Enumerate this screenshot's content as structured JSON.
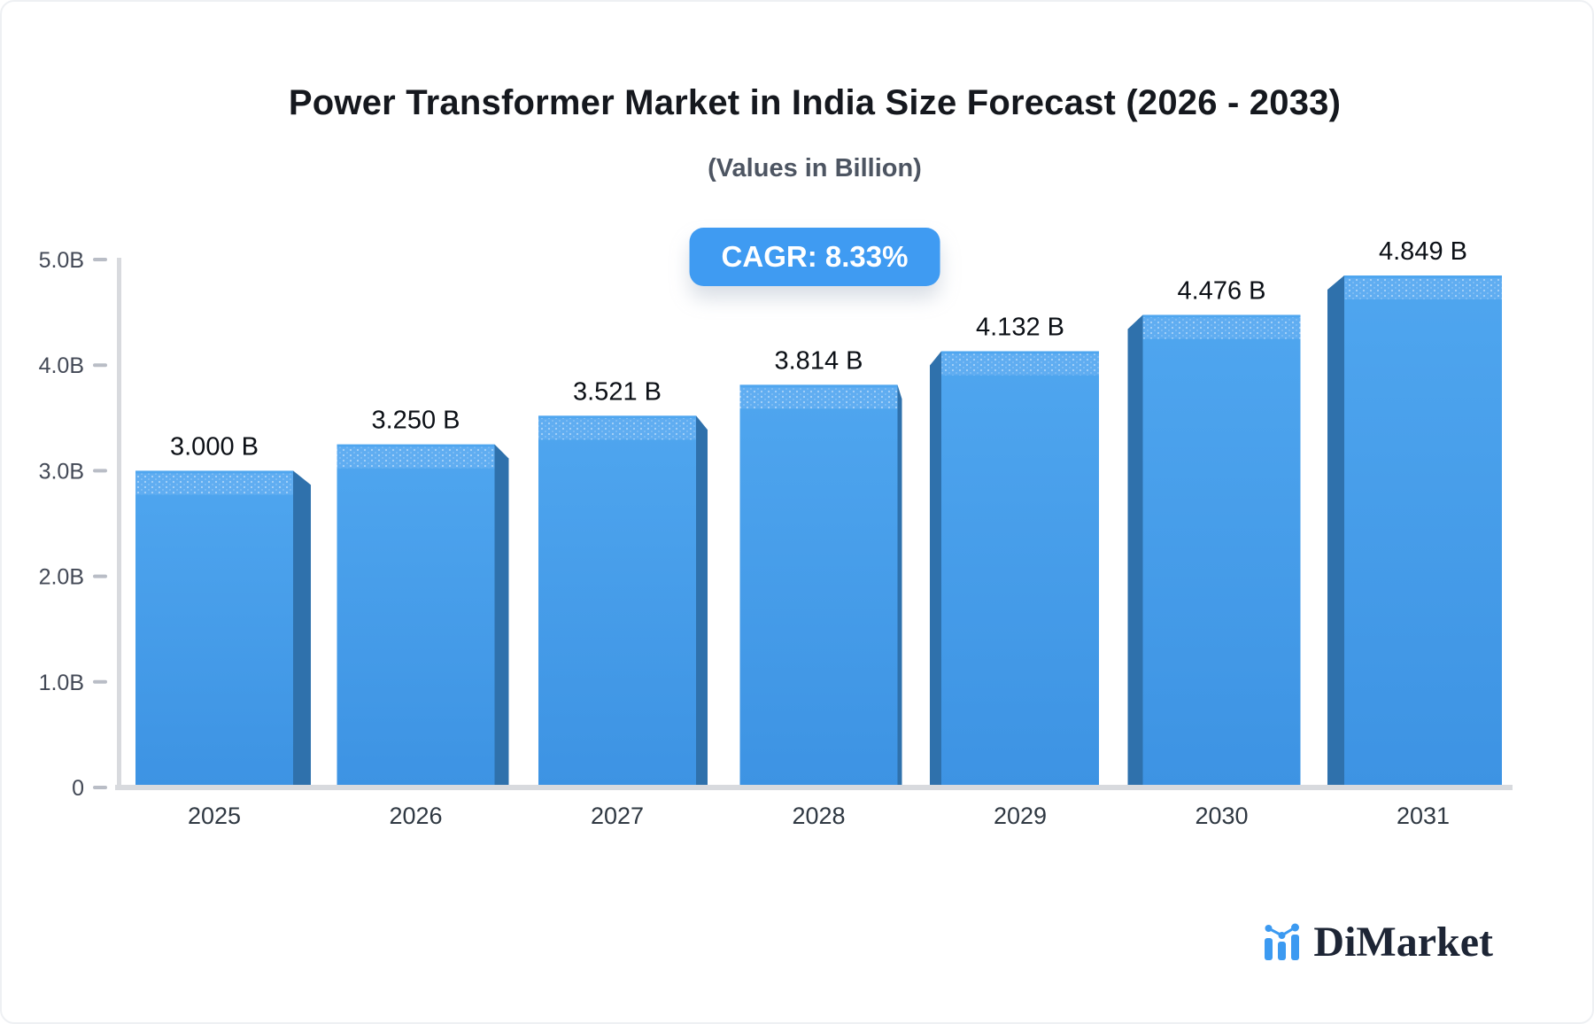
{
  "title": "Power Transformer Market in India Size Forecast (2026 - 2033)",
  "subtitle": "(Values in Billion)",
  "badge": {
    "label": "CAGR: 8.33%"
  },
  "logo": {
    "brand": "DiMarket"
  },
  "chart_data": {
    "type": "bar",
    "title": "Power Transformer Market in India Size Forecast (2026 - 2033)",
    "subtitle": "(Values in Billion)",
    "annotation": "CAGR: 8.33%",
    "categories": [
      "2025",
      "2026",
      "2027",
      "2028",
      "2029",
      "2030",
      "2031"
    ],
    "values": [
      3.0,
      3.25,
      3.521,
      3.814,
      4.132,
      4.476,
      4.849
    ],
    "value_labels": [
      "3.000 B",
      "3.250 B",
      "3.521 B",
      "3.814 B",
      "4.132 B",
      "4.476 B",
      "4.849 B"
    ],
    "y_ticks": [
      {
        "value": 5,
        "label": "5.0B"
      },
      {
        "value": 4,
        "label": "4.0B"
      },
      {
        "value": 3,
        "label": "3.0B"
      },
      {
        "value": 2,
        "label": "2.0B"
      },
      {
        "value": 1,
        "label": "1.0B"
      },
      {
        "value": 0,
        "label": "0"
      }
    ],
    "ylim": [
      0,
      5
    ],
    "xlabel": "",
    "ylabel": "",
    "grid": "off",
    "legend": "none",
    "bar_style": "3d",
    "colors": {
      "bar_face_top": "#4fa6ef",
      "bar_face_bottom": "#3d93e3",
      "bar_top_band": "#63aef1",
      "bar_flank": "#2f71ac",
      "axis_line": "#d8dade",
      "tick": "#b9bdc6",
      "tick_label": "#434956",
      "value_label": "#0c1016",
      "category_label": "#2f3842",
      "badge_bg": "#3f9bf2"
    }
  }
}
